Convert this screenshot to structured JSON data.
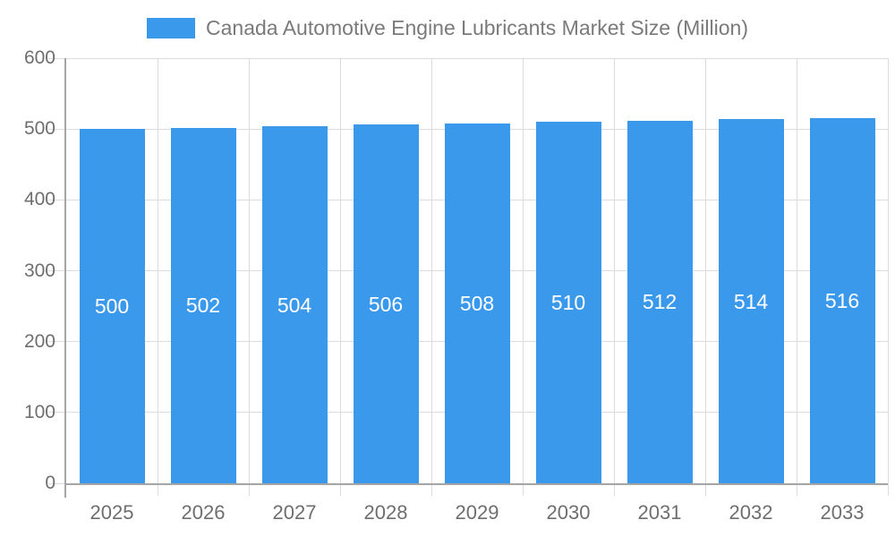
{
  "legend": {
    "label": "Canada Automotive Engine Lubricants Market Size (Million)"
  },
  "chart_data": {
    "type": "bar",
    "title": "Canada Automotive Engine Lubricants Market Size (Million)",
    "categories": [
      "2025",
      "2026",
      "2027",
      "2028",
      "2029",
      "2030",
      "2031",
      "2032",
      "2033"
    ],
    "values": [
      500,
      502,
      504,
      506,
      508,
      510,
      512,
      514,
      516
    ],
    "xlabel": "",
    "ylabel": "",
    "ylim": [
      0,
      600
    ],
    "ytick_step": 100,
    "ytick_labels": [
      "0",
      "100",
      "200",
      "300",
      "400",
      "500",
      "600"
    ],
    "grid": true,
    "legend_position": "top",
    "bar_labels_shown": true
  },
  "colors": {
    "bar": "#3B99EC",
    "bar_label_text": "#FFFFFF",
    "grid": "#DCDCDC",
    "axis": "#A5A5A5",
    "tick_text": "#6E6E6E",
    "title_text": "#7A7A7A",
    "background": "#FFFFFF"
  }
}
